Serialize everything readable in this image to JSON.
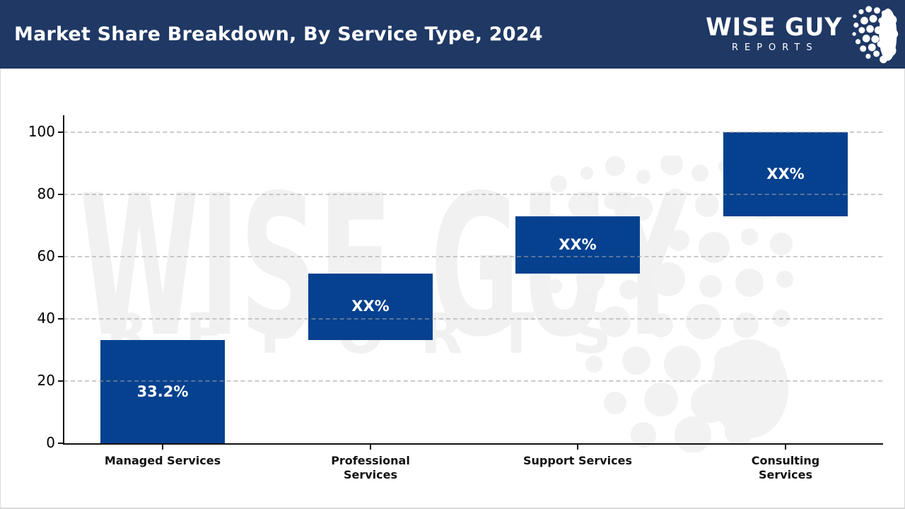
{
  "header": {
    "title": "Market Share Breakdown, By Service Type, 2024",
    "bg_color": "#1f3864",
    "logo": {
      "brand_top": "WISE GUY",
      "brand_bottom": "REPORTS"
    }
  },
  "watermark": {
    "line1": "WISE GUY",
    "line2": "REPORTS"
  },
  "chart_data": {
    "type": "bar",
    "subtype": "floating-waterfall",
    "title": "Market Share Breakdown, By Service Type, 2024",
    "categories": [
      "Managed Services",
      "Professional Services",
      "Support Services",
      "Consulting Services"
    ],
    "categories_lines": [
      [
        "Managed Services"
      ],
      [
        "Professional",
        "Services"
      ],
      [
        "Support Services"
      ],
      [
        "Consulting",
        "Services"
      ]
    ],
    "series": [
      {
        "name": "Market share (%)",
        "segments": [
          {
            "category": "Managed Services",
            "start": 0,
            "end": 33.2,
            "label": "33.2%"
          },
          {
            "category": "Professional Services",
            "start": 33.2,
            "end": 54.5,
            "label": "XX%"
          },
          {
            "category": "Support Services",
            "start": 54.5,
            "end": 73,
            "label": "XX%"
          },
          {
            "category": "Consulting Services",
            "start": 73,
            "end": 100,
            "label": "XX%"
          }
        ]
      }
    ],
    "xlabel": "",
    "ylabel": "",
    "ylim": [
      0,
      105
    ],
    "yticks": [
      0,
      20,
      40,
      60,
      80,
      100
    ],
    "grid": "horizontal-dashed",
    "legend": "none",
    "bar_color": "#05418f",
    "bar_label_color": "#ffffff",
    "grid_color": "#d9d9d9",
    "axis_color": "#111111"
  }
}
